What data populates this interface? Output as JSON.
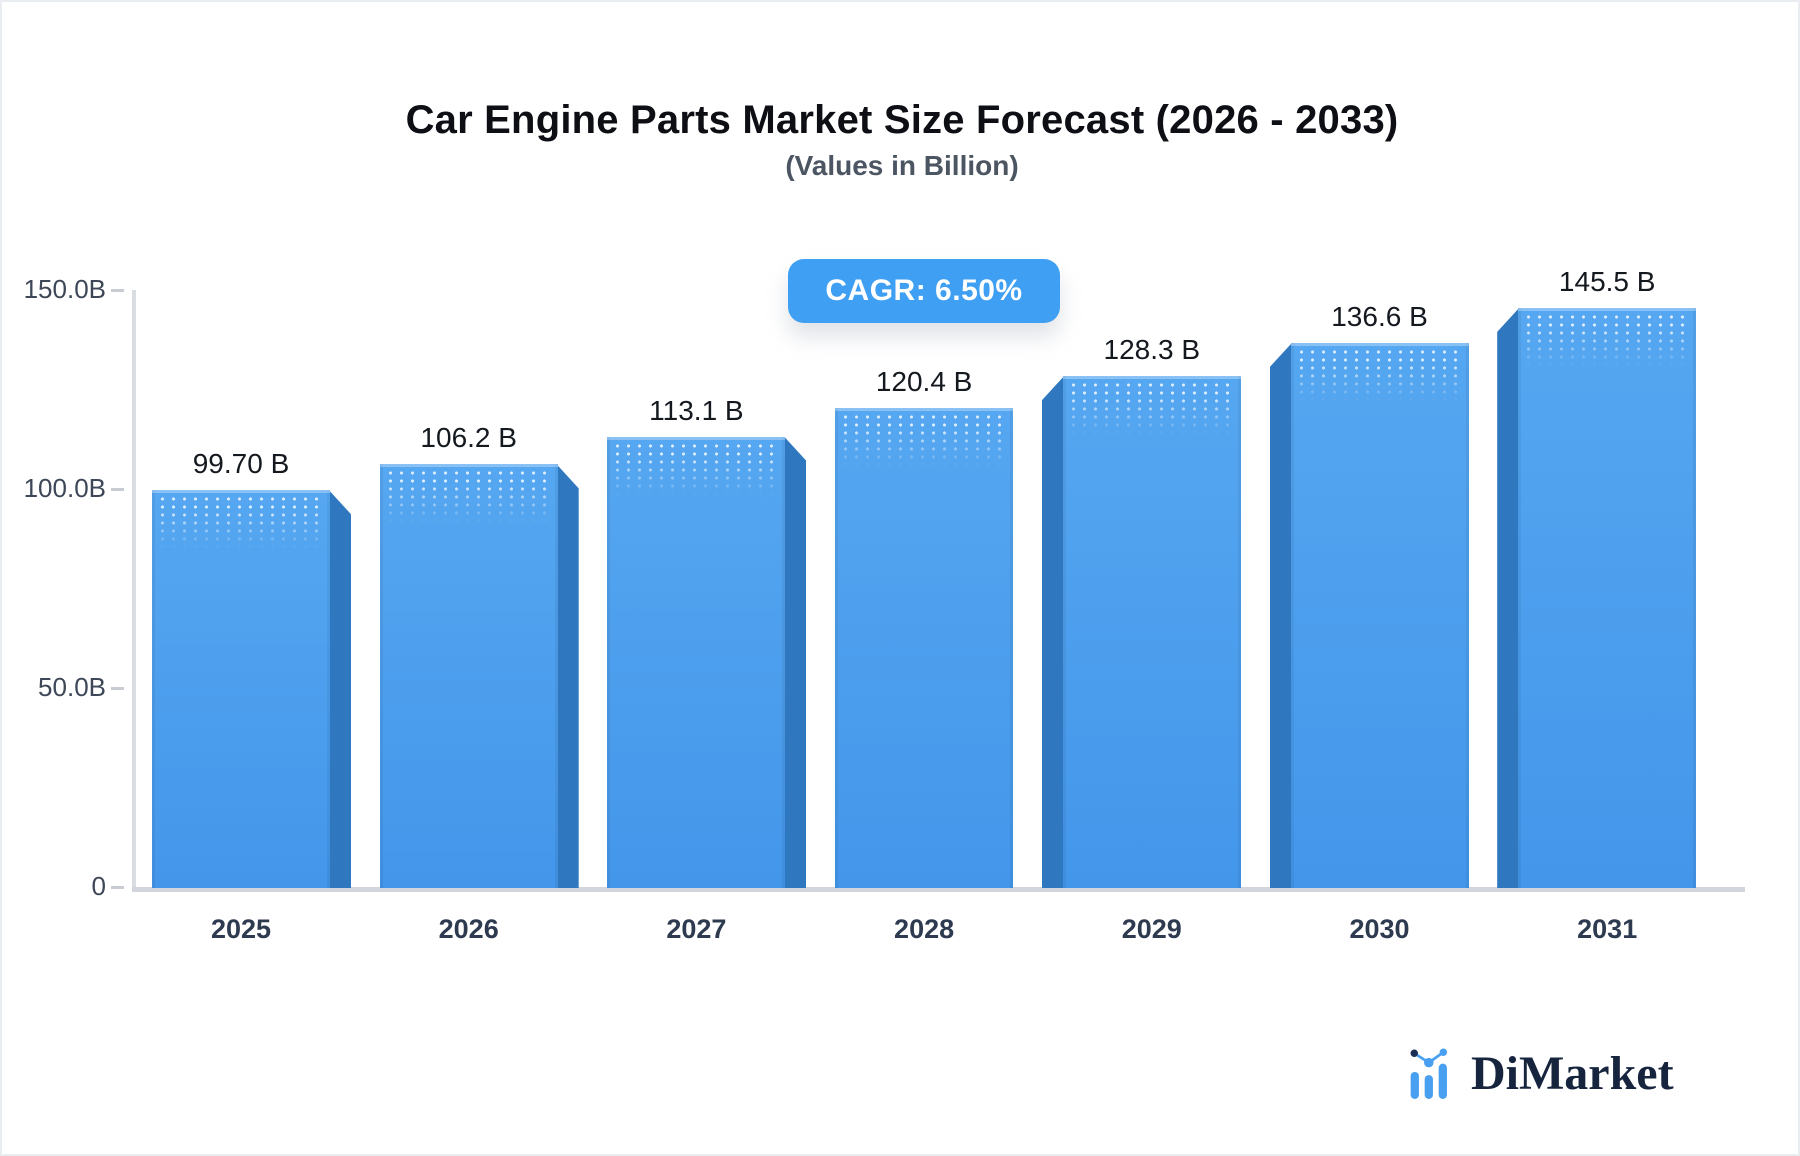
{
  "title": "Car Engine Parts Market Size Forecast (2026 - 2033)",
  "subtitle": "(Values in Billion)",
  "badge": {
    "label": "CAGR: 6.50%",
    "color": "#3f9ff3"
  },
  "logo": {
    "text": "DiMarket",
    "icon": "mini-bar-line-chart-icon",
    "accent": "#4aa0f0",
    "text_color": "#16243e"
  },
  "chart_data": {
    "type": "bar",
    "title": "Car Engine Parts Market Size Forecast (2026 - 2033)",
    "subtitle": "(Values in Billion)",
    "categories": [
      "2025",
      "2026",
      "2027",
      "2028",
      "2029",
      "2030",
      "2031"
    ],
    "values": [
      99.7,
      106.2,
      113.1,
      120.4,
      128.3,
      136.6,
      145.5
    ],
    "value_labels": [
      "99.70 B",
      "106.2 B",
      "113.1 B",
      "120.4 B",
      "128.3 B",
      "136.6 B",
      "145.5 B"
    ],
    "y_tick_labels": [
      "150.0B",
      "100.0B",
      "50.0B",
      "0"
    ],
    "y_tick_values": [
      150,
      100,
      50,
      0
    ],
    "ylim": [
      0,
      150
    ],
    "xlabel": "",
    "ylabel": "",
    "grid": false,
    "legend": false,
    "bar_color_top": "#56a7f1",
    "bar_color_bottom": "#4396ea",
    "bar_side_color": "#2f78c0",
    "bar_3d_sides": [
      "right",
      "right",
      "right",
      "none",
      "left",
      "left",
      "left"
    ],
    "annotation": "CAGR: 6.50%"
  }
}
